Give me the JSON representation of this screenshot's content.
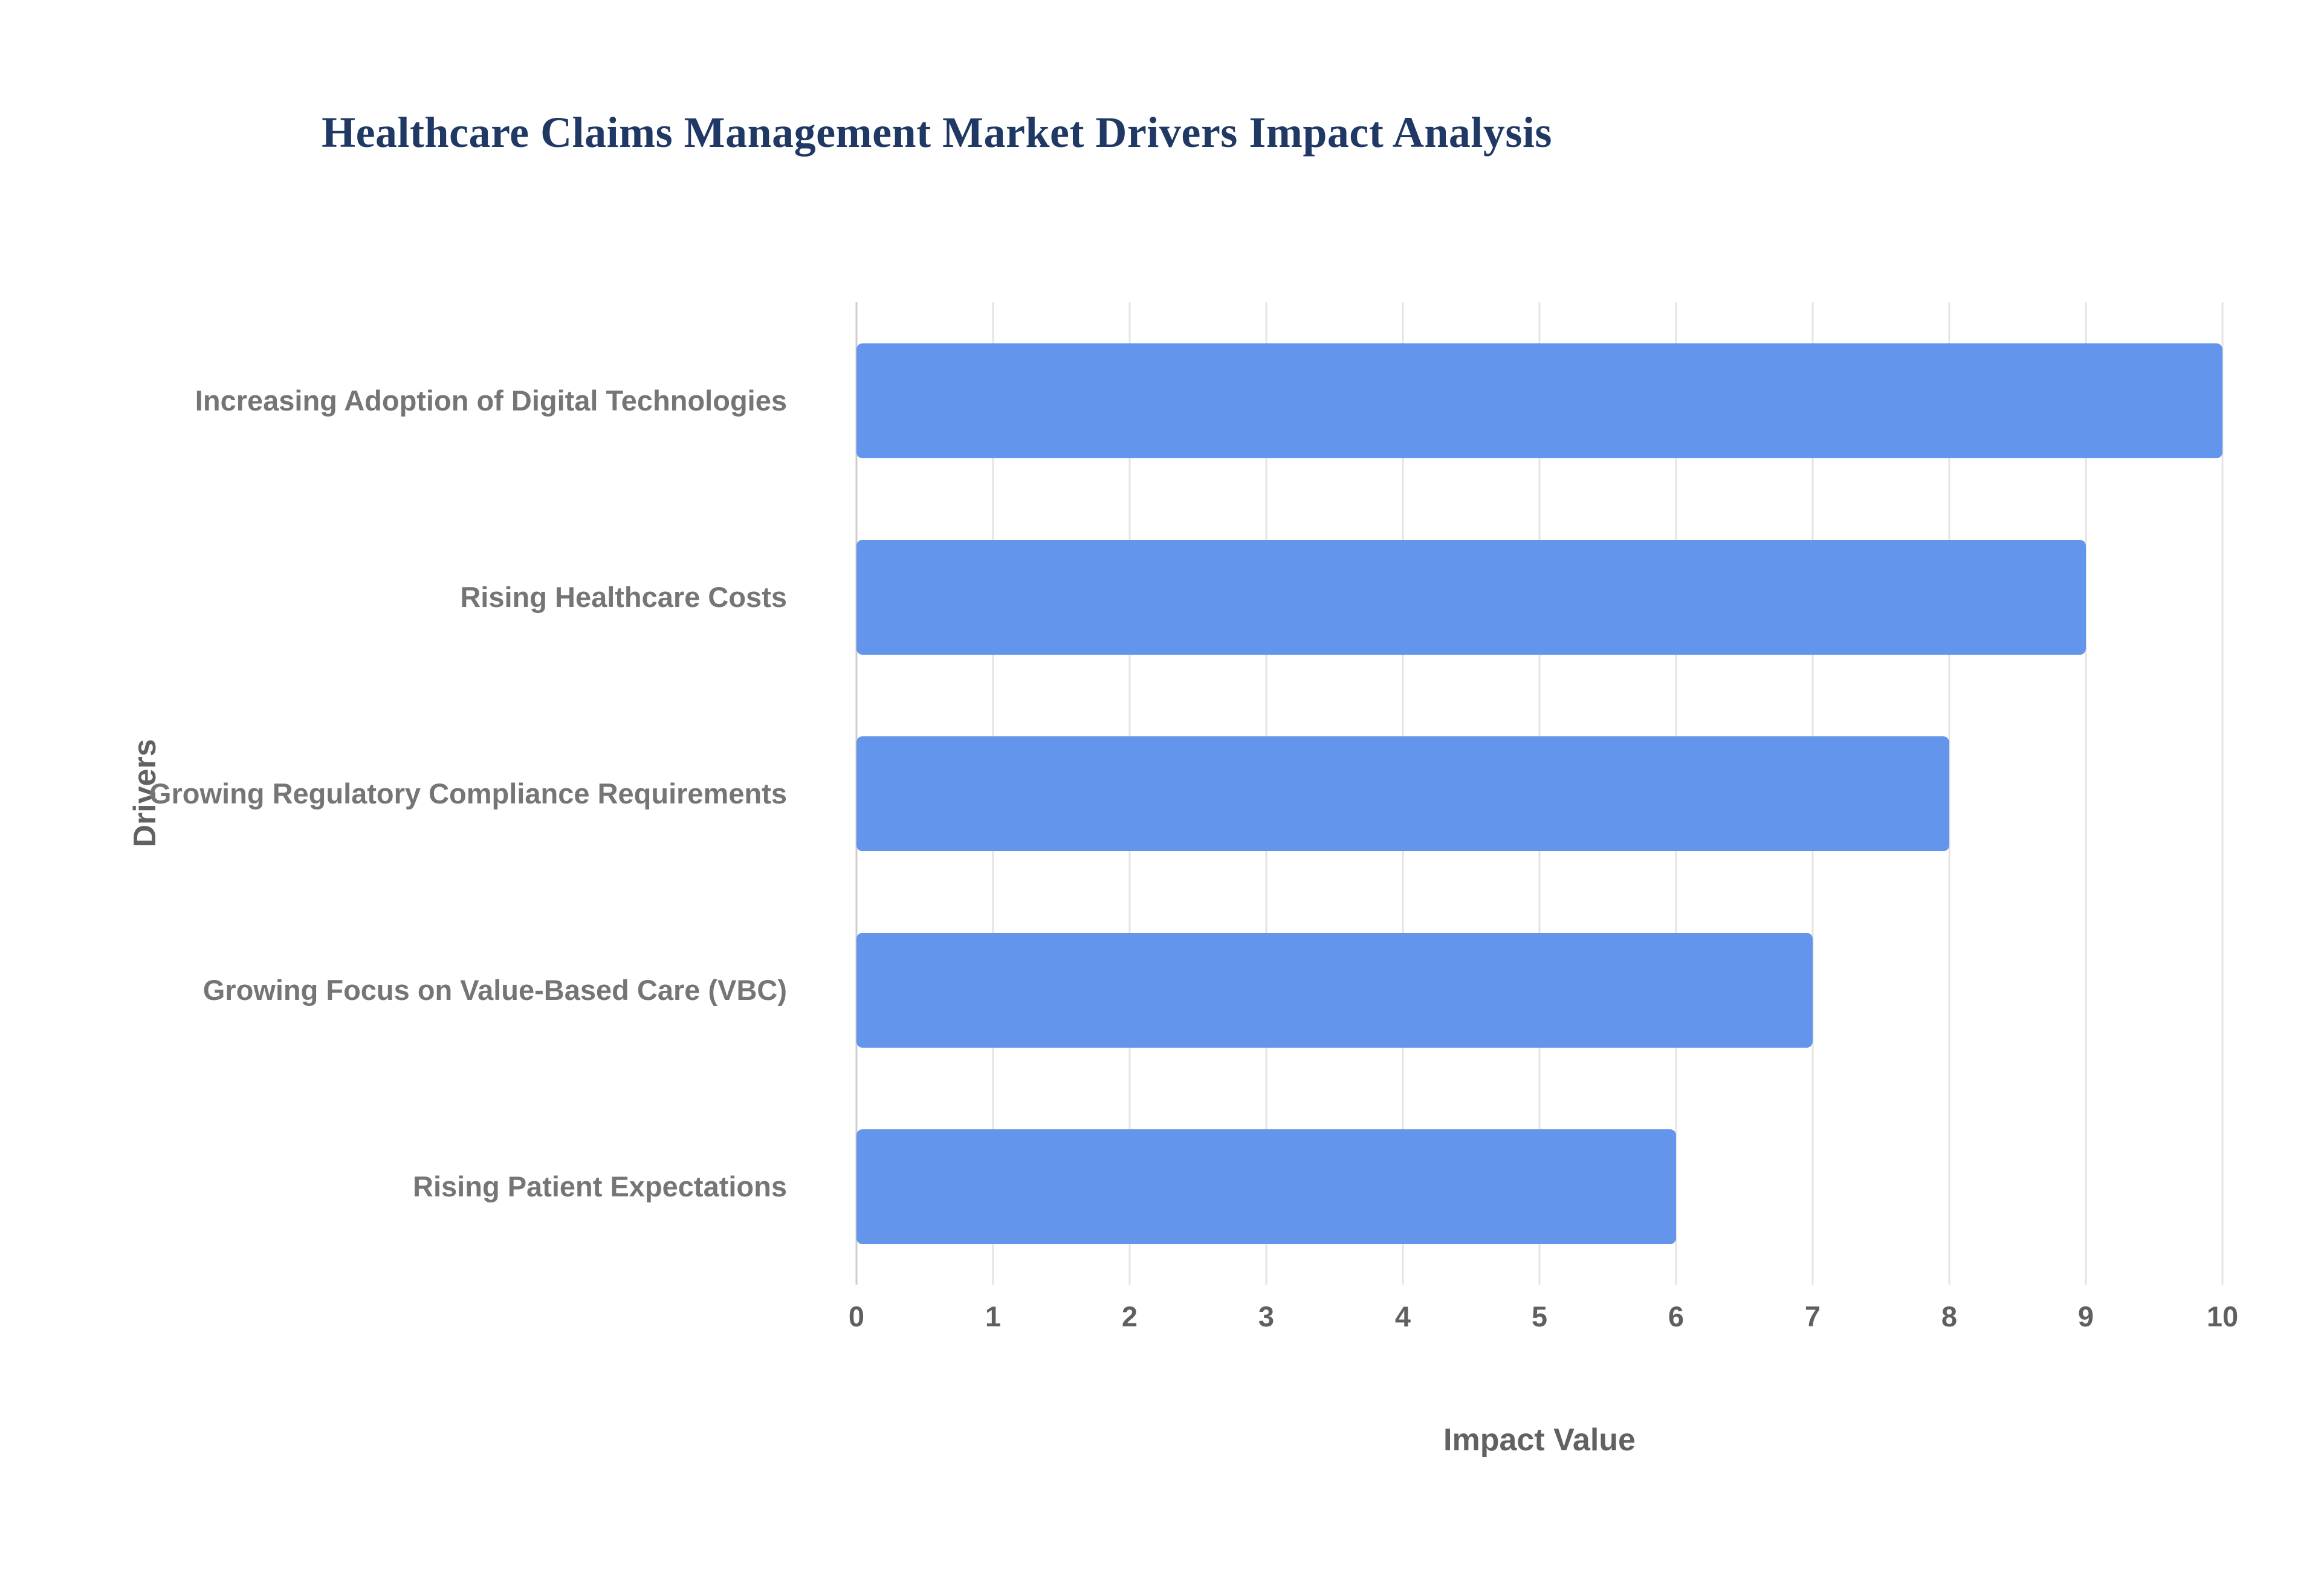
{
  "chart_data": {
    "type": "bar",
    "orientation": "horizontal",
    "title": "Healthcare Claims Management Market Drivers Impact Analysis",
    "categories": [
      "Increasing Adoption of Digital Technologies",
      "Rising Healthcare Costs",
      "Growing Regulatory Compliance Requirements",
      "Growing Focus on Value-Based Care (VBC)",
      "Rising Patient Expectations"
    ],
    "values": [
      10,
      9,
      8,
      7,
      6
    ],
    "xlabel": "Impact Value",
    "ylabel": "Drivers",
    "xlim": [
      0,
      10
    ],
    "xticks": [
      0,
      1,
      2,
      3,
      4,
      5,
      6,
      7,
      8,
      9,
      10
    ],
    "grid": "vertical",
    "legend": "none",
    "colors": {
      "bar": "#6495ED",
      "title": "#1f3864",
      "axis_titles": "#616161",
      "category_labels": "#757575",
      "tick_labels": "#5f5f5f",
      "gridlines": "#e4e4e4",
      "background": "#ffffff"
    }
  }
}
